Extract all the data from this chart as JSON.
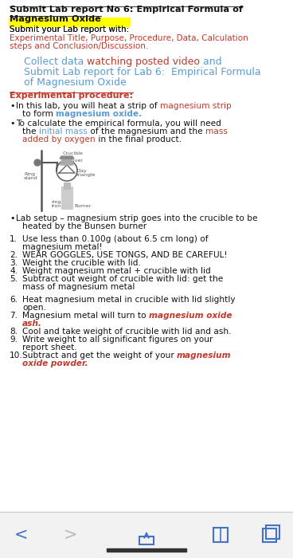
{
  "bg_color": "#ffffff",
  "toolbar_bg": "#f2f2f2",
  "title_line1": "Submit Lab report No 6: Empirical Formula of",
  "title_line2": "Magnesium Oxide",
  "highlight_text": "Submit your Lab report with:",
  "highlight_bg": "#ffff00",
  "red_line1": "Experimental Title, Purpose, Procedure, Data, Calculation",
  "red_line2": "steps and Conclusion/Discussion.",
  "color_black": "#111111",
  "color_red": "#c0392b",
  "color_blue": "#5b9bd5",
  "color_dark": "#222222",
  "color_toolbar_icon": "#4472c4",
  "color_gray": "#999999"
}
